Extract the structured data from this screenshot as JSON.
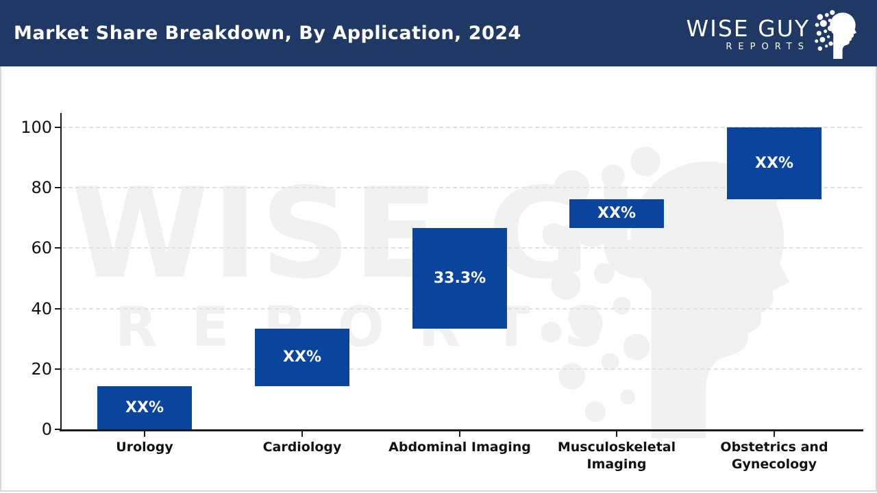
{
  "header": {
    "title": "Market Share Breakdown, By Application, 2024",
    "logo": {
      "line1": "WISE GUY",
      "line2": "REPORTS"
    }
  },
  "watermark": {
    "line1": "WISE GUY",
    "line2": "REPORTS"
  },
  "colors": {
    "header_bg": "#203864",
    "bar": "#0a449c",
    "grid": "#e0e0e0",
    "axis": "#1a1a1a",
    "watermark": "#f1f1f1",
    "bar_label": "#ffffff"
  },
  "chart_data": {
    "type": "bar",
    "subtype": "waterfall-floating-segments",
    "title": "Market Share Breakdown, By Application, 2024",
    "xlabel": "",
    "ylabel": "",
    "ylim": [
      0,
      100
    ],
    "yticks": [
      0,
      20,
      40,
      60,
      80,
      100
    ],
    "grid": "horizontal-dashed",
    "legend": "none",
    "categories": [
      "Urology",
      "Cardiology",
      "Abdominal Imaging",
      "Musculoskeletal\nImaging",
      "Obstetrics and\nGynecology"
    ],
    "segments": [
      {
        "category": "Urology",
        "start": 0,
        "end": 14.3,
        "label": "XX%"
      },
      {
        "category": "Cardiology",
        "start": 14.3,
        "end": 33.3,
        "label": "XX%"
      },
      {
        "category": "Abdominal Imaging",
        "start": 33.3,
        "end": 66.6,
        "label": "33.3%"
      },
      {
        "category": "Musculoskeletal Imaging",
        "start": 66.6,
        "end": 76.2,
        "label": "XX%"
      },
      {
        "category": "Obstetrics and Gynecology",
        "start": 76.2,
        "end": 100,
        "label": "XX%"
      }
    ]
  }
}
